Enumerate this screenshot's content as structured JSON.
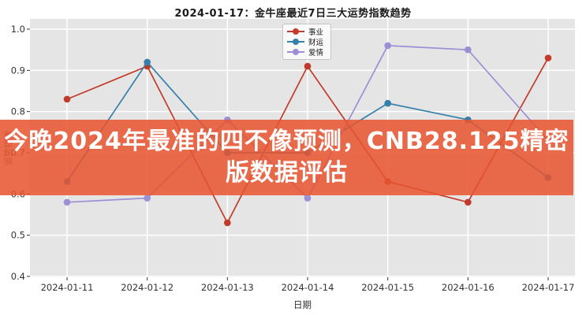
{
  "title": "2024-01-17：金牛座最近7日三大运势指数趋势",
  "banner": {
    "full_text": "今晚2024年最准的四不像预测，CNB28.125精密版数据评估",
    "line1": "今晚2024年最准的四不像预测，CNB28.125精密",
    "line2": "版数据评估",
    "background_color": "#e75430",
    "text_color": "#ffffff"
  },
  "chart_data": {
    "type": "line",
    "title": "2024-01-17：金牛座最近7日三大运势指数趋势",
    "xlabel": "日期",
    "ylabel": "运势指数",
    "categories": [
      "2024-01-11",
      "2024-01-12",
      "2024-01-13",
      "2024-01-14",
      "2024-01-15",
      "2024-01-16",
      "2024-01-17"
    ],
    "series": [
      {
        "name": "事业",
        "color": "#c23b2a",
        "values": [
          0.83,
          0.91,
          0.53,
          0.91,
          0.63,
          0.58,
          0.93
        ]
      },
      {
        "name": "财运",
        "color": "#3580ab",
        "values": [
          0.63,
          0.92,
          0.7,
          0.7,
          0.82,
          0.78,
          0.64
        ]
      },
      {
        "name": "爱情",
        "color": "#9d8ed5",
        "values": [
          0.58,
          0.59,
          0.78,
          0.59,
          0.96,
          0.95,
          0.73
        ]
      }
    ],
    "ylim": [
      0.4,
      1.0
    ],
    "yticks": [
      0.4,
      0.5,
      0.6,
      0.7,
      0.8,
      0.9,
      1.0
    ],
    "grid": true,
    "legend_position": "upper center",
    "plot_background": "#e5e5e5",
    "gridline_color": "#ffffff",
    "tick_label_color": "#333333"
  }
}
